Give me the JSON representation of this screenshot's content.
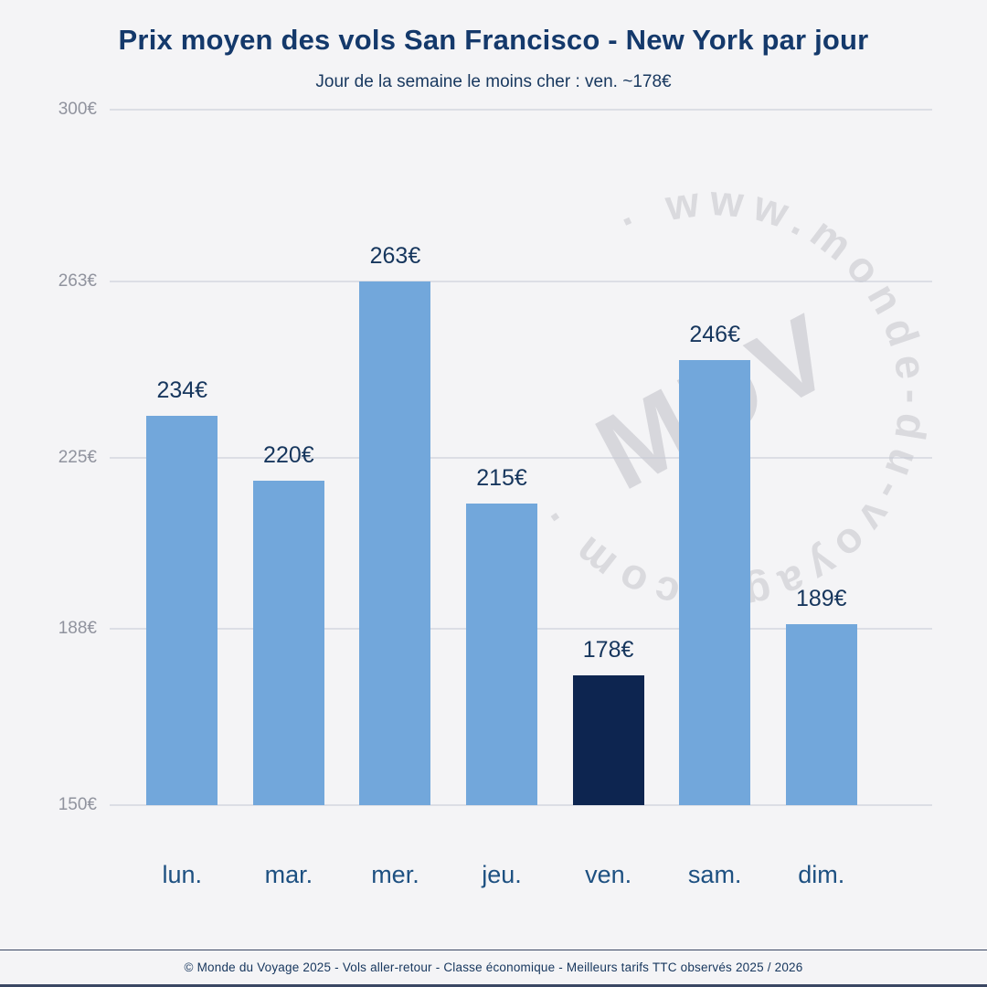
{
  "header": {
    "title": "Prix moyen des vols San Francisco - New York par jour",
    "subtitle": "Jour de la semaine le moins cher : ven. ~178€"
  },
  "chart_data": {
    "type": "bar",
    "title": "Prix moyen des vols San Francisco - New York par jour",
    "subtitle": "Jour de la semaine le moins cher : ven. ~178€",
    "categories": [
      "lun.",
      "mar.",
      "mer.",
      "jeu.",
      "ven.",
      "sam.",
      "dim."
    ],
    "values": [
      234,
      220,
      263,
      215,
      178,
      246,
      189
    ],
    "value_labels": [
      "234€",
      "220€",
      "263€",
      "215€",
      "178€",
      "246€",
      "189€"
    ],
    "highlight_index": 4,
    "highlight_meaning": "cheapest day",
    "y_ticks": [
      300,
      263,
      225,
      188,
      150
    ],
    "y_tick_labels": [
      "300€",
      "263€",
      "225€",
      "188€",
      "150€"
    ],
    "ylim": [
      150,
      300
    ],
    "xlabel": "",
    "ylabel": "",
    "grid": true,
    "legend": false,
    "bar_color": "#72a7db",
    "highlight_color": "#0d2550"
  },
  "watermark": {
    "circle_text": "· www.monde-du-voyage.com ·",
    "center_text": "MDV"
  },
  "footer": {
    "text": "© Monde du Voyage 2025 - Vols aller-retour - Classe économique - Meilleurs tarifs TTC observés 2025 / 2026"
  },
  "colors": {
    "background": "#f4f4f6",
    "title": "#14396b",
    "subtitle": "#17375e",
    "value_label": "#16365d",
    "x_label": "#1d5081",
    "y_tick": "#90939e",
    "gridline": "#c4c8d4",
    "bar": "#72a7db",
    "highlight_bar": "#0d2550",
    "watermark": "#dadade"
  }
}
